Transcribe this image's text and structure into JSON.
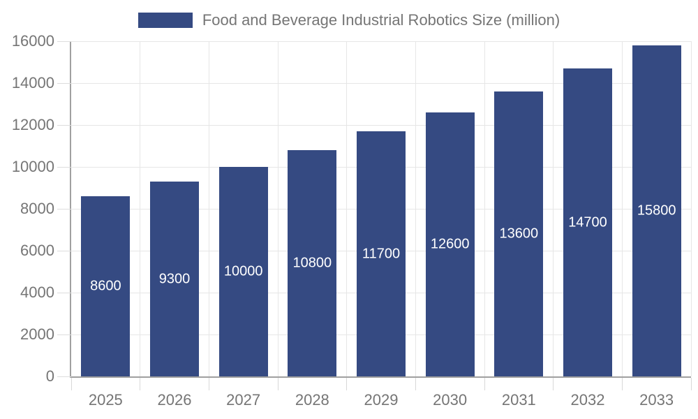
{
  "chart_data": {
    "type": "bar",
    "series_name": "Food and Beverage Industrial Robotics Size (million)",
    "categories": [
      "2025",
      "2026",
      "2027",
      "2028",
      "2029",
      "2030",
      "2031",
      "2032",
      "2033"
    ],
    "values": [
      8600,
      9300,
      10000,
      10800,
      11700,
      12600,
      13600,
      14700,
      15800
    ],
    "title": "Food and Beverage Industrial Robotics Size (million)",
    "xlabel": "",
    "ylabel": "",
    "ylim": [
      0,
      16000
    ],
    "ytick_interval": 2000,
    "grid": true,
    "legend_position": "top",
    "bar_color": "#354a82",
    "value_label_color": "#ffffff",
    "axis_text_color": "#757575"
  }
}
